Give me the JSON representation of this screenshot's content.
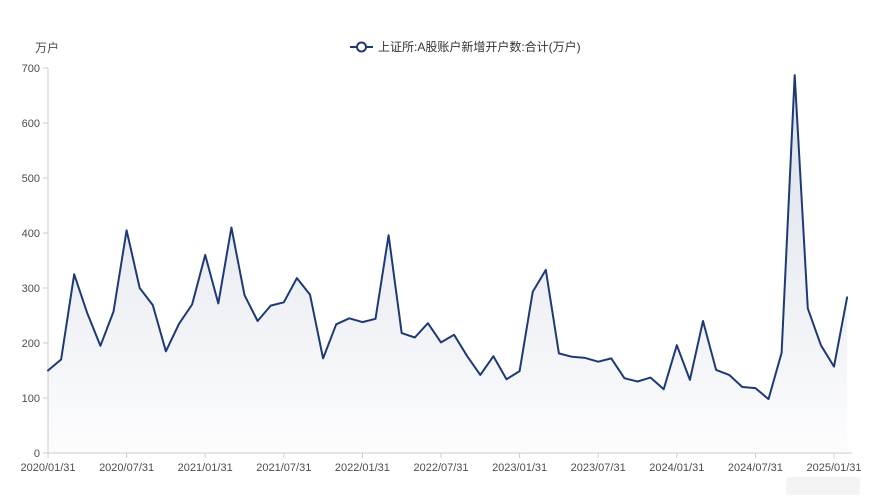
{
  "app": {
    "background": "#ffffff"
  },
  "legend": {
    "label": "上证所:A股账户新增开户数:合计(万户)"
  },
  "y_axis": {
    "unit_label": "万户",
    "ticks": [
      0,
      100,
      200,
      300,
      400,
      500,
      600,
      700
    ]
  },
  "x_axis": {
    "tick_labels": [
      "2020/01/31",
      "2020/07/31",
      "2021/01/31",
      "2021/07/31",
      "2022/01/31",
      "2022/07/31",
      "2023/01/31",
      "2023/07/31",
      "2024/01/31",
      "2024/07/31",
      "2025/01/31"
    ]
  },
  "chart_data": {
    "type": "line",
    "title": "",
    "xlabel": "",
    "ylabel": "万户",
    "ylim": [
      0,
      700
    ],
    "grid": false,
    "area": true,
    "smooth": false,
    "legend_position": "top-center",
    "x": [
      "2020/01",
      "2020/02",
      "2020/03",
      "2020/04",
      "2020/05",
      "2020/06",
      "2020/07",
      "2020/08",
      "2020/09",
      "2020/10",
      "2020/11",
      "2020/12",
      "2021/01",
      "2021/02",
      "2021/03",
      "2021/04",
      "2021/05",
      "2021/06",
      "2021/07",
      "2021/08",
      "2021/09",
      "2021/10",
      "2021/11",
      "2021/12",
      "2022/01",
      "2022/02",
      "2022/03",
      "2022/04",
      "2022/05",
      "2022/06",
      "2022/07",
      "2022/08",
      "2022/09",
      "2022/10",
      "2022/11",
      "2022/12",
      "2023/01",
      "2023/02",
      "2023/03",
      "2023/04",
      "2023/05",
      "2023/06",
      "2023/07",
      "2023/08",
      "2023/09",
      "2023/10",
      "2023/11",
      "2023/12",
      "2024/01",
      "2024/02",
      "2024/03",
      "2024/04",
      "2024/05",
      "2024/06",
      "2024/07",
      "2024/08",
      "2024/09",
      "2024/10",
      "2024/11",
      "2024/12",
      "2025/01",
      "2025/02"
    ],
    "series": [
      {
        "name": "上证所:A股账户新增开户数:合计(万户)",
        "values": [
          150,
          170,
          325,
          254,
          195,
          257,
          405,
          300,
          269,
          185,
          235,
          270,
          360,
          272,
          410,
          287,
          240,
          268,
          274,
          318,
          288,
          172,
          234,
          245,
          238,
          244,
          396,
          218,
          210,
          236,
          201,
          215,
          176,
          142,
          176,
          134,
          149,
          293,
          333,
          181,
          175,
          173,
          166,
          172,
          136,
          130,
          137,
          116,
          196,
          133,
          240,
          151,
          142,
          120,
          118,
          98,
          182,
          687,
          263,
          196,
          157,
          283
        ]
      }
    ]
  },
  "colors": {
    "line": "#1e3a76",
    "area_top": "rgba(30,58,118,0.16)",
    "area_bottom": "rgba(30,58,118,0.01)",
    "axis": "#cccccc",
    "tick_text": "#4d4d4d",
    "legend_text": "#333333",
    "watermark": "#f4f4f5",
    "background": "#ffffff"
  }
}
